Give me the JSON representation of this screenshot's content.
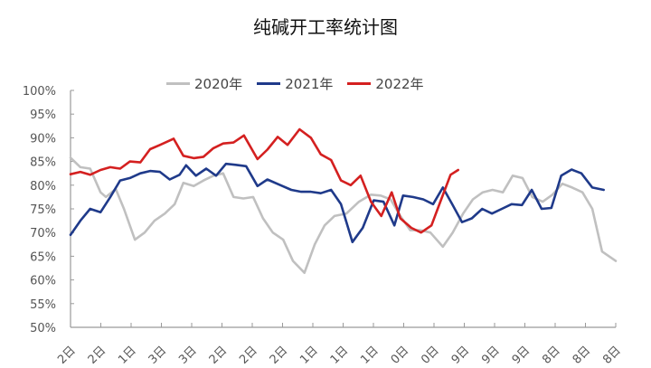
{
  "header": {
    "title": "纯碱开工率统计图"
  },
  "legend": [
    {
      "label": "2020年",
      "color": "#c0c0c0"
    },
    {
      "label": "2021年",
      "color": "#1f3a8a"
    },
    {
      "label": "2022年",
      "color": "#d42020"
    }
  ],
  "axes": {
    "y_ticks": [
      "100%",
      "95%",
      "90%",
      "85%",
      "80%",
      "75%",
      "70%",
      "65%",
      "60%",
      "55%",
      "50%"
    ],
    "x_tick_labels_partial": [
      "…2日",
      "…2日",
      "…1日",
      "…3日",
      "…3日",
      "…2日",
      "…2日",
      "…2日",
      "…1日",
      "…1日",
      "…1日",
      "…0日",
      "…0日",
      "…9日",
      "…9日",
      "…9日",
      "…8日",
      "…8日",
      "…8日"
    ]
  },
  "chart_data": {
    "type": "line",
    "title": "纯碱开工率统计图",
    "xlabel": "",
    "ylabel": "",
    "ylim": [
      50,
      100
    ],
    "y_unit": "%",
    "grid": false,
    "legend_position": "top",
    "x_note": "x given as relative position along the year axis (0 = start, 1 = end); date tick labels are cut off in the image",
    "series": [
      {
        "name": "2020年",
        "color": "#c0c0c0",
        "x": [
          0.0,
          0.018,
          0.036,
          0.055,
          0.065,
          0.083,
          0.098,
          0.118,
          0.136,
          0.154,
          0.173,
          0.191,
          0.207,
          0.226,
          0.244,
          0.262,
          0.28,
          0.299,
          0.317,
          0.335,
          0.353,
          0.371,
          0.39,
          0.408,
          0.429,
          0.448,
          0.466,
          0.484,
          0.506,
          0.529,
          0.551,
          0.569,
          0.587,
          0.605,
          0.623,
          0.642,
          0.66,
          0.683,
          0.701,
          0.72,
          0.738,
          0.756,
          0.774,
          0.793,
          0.811,
          0.829,
          0.847,
          0.866,
          0.884,
          0.902,
          0.92,
          0.939,
          0.957,
          0.975,
          1.0
        ],
        "values": [
          85.8,
          83.8,
          83.5,
          78.5,
          77.5,
          79.2,
          75.0,
          68.5,
          70.0,
          72.5,
          74.0,
          76.0,
          80.5,
          79.8,
          81.0,
          82.0,
          82.5,
          77.5,
          77.2,
          77.5,
          73.0,
          70.0,
          68.5,
          64.0,
          61.5,
          67.5,
          71.5,
          73.5,
          74.0,
          76.5,
          78.0,
          77.8,
          77.0,
          73.5,
          70.5,
          70.5,
          70.0,
          67.0,
          70.0,
          74.0,
          77.0,
          78.5,
          79.0,
          78.5,
          82.0,
          81.5,
          77.5,
          76.5,
          78.0,
          80.3,
          79.5,
          78.5,
          75.0,
          66.0,
          64.0
        ]
      },
      {
        "name": "2021年",
        "color": "#1f3a8a",
        "x": [
          0.0,
          0.018,
          0.036,
          0.055,
          0.073,
          0.091,
          0.109,
          0.128,
          0.146,
          0.164,
          0.182,
          0.2,
          0.212,
          0.23,
          0.249,
          0.267,
          0.285,
          0.303,
          0.322,
          0.343,
          0.361,
          0.385,
          0.405,
          0.423,
          0.441,
          0.459,
          0.478,
          0.496,
          0.517,
          0.536,
          0.556,
          0.574,
          0.594,
          0.61,
          0.628,
          0.647,
          0.665,
          0.683,
          0.7,
          0.718,
          0.736,
          0.755,
          0.773,
          0.791,
          0.809,
          0.828,
          0.846,
          0.864,
          0.882,
          0.9,
          0.919,
          0.937,
          0.957,
          0.978
        ],
        "values": [
          69.5,
          72.5,
          75.0,
          74.3,
          77.5,
          81.0,
          81.5,
          82.5,
          83.0,
          82.8,
          81.2,
          82.2,
          84.2,
          82.0,
          83.5,
          82.0,
          84.5,
          84.3,
          84.0,
          79.8,
          81.2,
          80.0,
          79.0,
          78.6,
          78.6,
          78.3,
          79.0,
          76.0,
          68.0,
          71.0,
          76.8,
          76.5,
          71.5,
          77.8,
          77.5,
          77.0,
          76.0,
          79.5,
          76.0,
          72.2,
          73.0,
          75.0,
          74.0,
          75.0,
          76.0,
          75.8,
          79.0,
          75.0,
          75.2,
          82.0,
          83.3,
          82.5,
          79.5,
          79.0
        ]
      },
      {
        "name": "2022年",
        "color": "#d42020",
        "x": [
          0.0,
          0.018,
          0.036,
          0.055,
          0.073,
          0.091,
          0.109,
          0.128,
          0.146,
          0.164,
          0.189,
          0.207,
          0.226,
          0.244,
          0.262,
          0.28,
          0.299,
          0.318,
          0.343,
          0.361,
          0.38,
          0.398,
          0.42,
          0.441,
          0.459,
          0.478,
          0.496,
          0.514,
          0.532,
          0.551,
          0.57,
          0.589,
          0.605,
          0.625,
          0.643,
          0.662,
          0.68,
          0.697,
          0.711
        ],
        "values": [
          82.3,
          82.8,
          82.2,
          83.2,
          83.8,
          83.5,
          85.0,
          84.8,
          87.6,
          88.5,
          89.8,
          86.2,
          85.7,
          86.0,
          87.8,
          88.8,
          89.0,
          90.5,
          85.5,
          87.5,
          90.2,
          88.5,
          91.8,
          90.0,
          86.5,
          85.3,
          81.0,
          80.0,
          82.0,
          76.5,
          73.5,
          78.5,
          73.0,
          71.0,
          70.0,
          71.5,
          77.0,
          82.2,
          83.2
        ]
      }
    ]
  }
}
